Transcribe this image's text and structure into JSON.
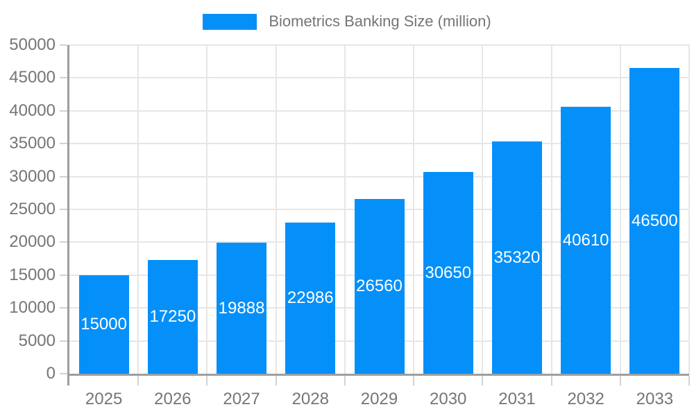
{
  "legend": {
    "label": "Biometrics Banking Size (million)"
  },
  "chart_data": {
    "type": "bar",
    "title": "",
    "categories": [
      "2025",
      "2026",
      "2027",
      "2028",
      "2029",
      "2030",
      "2031",
      "2032",
      "2033"
    ],
    "series": [
      {
        "name": "Biometrics Banking Size (million)",
        "values": [
          15000,
          17250,
          19888,
          22986,
          26560,
          30650,
          35320,
          40610,
          46500
        ]
      }
    ],
    "xlabel": "",
    "ylabel": "",
    "ylim": [
      0,
      50000
    ],
    "ytick_step": 5000,
    "grid": true,
    "legend_position": "top-center",
    "data_labels": "values shown in white, centered inside bars",
    "colors": {
      "bar": "#0590f9",
      "grid": "#e6e6e6",
      "axis": "#9e9e9e",
      "tick": "#d2d2d2",
      "label_text": "#757575",
      "data_label_text": "#ffffff",
      "background": "#ffffff"
    }
  }
}
